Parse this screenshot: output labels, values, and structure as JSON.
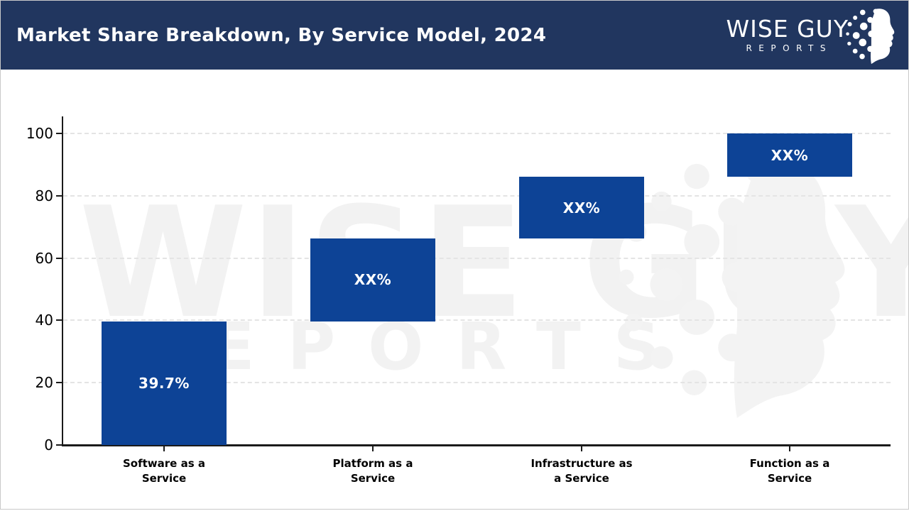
{
  "header": {
    "title": "Market Share Breakdown, By Service Model, 2024",
    "bg_color": "#21365f",
    "logo": {
      "wordmark": "WISE GUY",
      "subtext": "REPORTS"
    }
  },
  "watermark": {
    "wordmark": "WISE GUY",
    "subtext": "REPORTS"
  },
  "chart_data": {
    "type": "bar",
    "variant": "waterfall",
    "title": "Market Share Breakdown, By Service Model, 2024",
    "xlabel": "",
    "ylabel": "",
    "ylim": [
      0,
      100
    ],
    "yticks": [
      0,
      20,
      40,
      60,
      80,
      100
    ],
    "grid": "horizontal-dashed",
    "legend": "none",
    "bar_color": "#0d4396",
    "value_label_color": "#ffffff",
    "categories": [
      "Software as a Service",
      "Platform as a Service",
      "Infrastructure as a Service",
      "Function as a Service"
    ],
    "category_lines": [
      [
        "Software as a",
        "Service"
      ],
      [
        "Platform as a",
        "Service"
      ],
      [
        "Infrastructure as",
        "a Service"
      ],
      [
        "Function as a",
        "Service"
      ]
    ],
    "segments": [
      {
        "category": "Software as a Service",
        "start": 0,
        "end": 39.7,
        "label": "39.7%"
      },
      {
        "category": "Platform as a Service",
        "start": 39.7,
        "end": 66.3,
        "label": "XX%"
      },
      {
        "category": "Infrastructure as a Service",
        "start": 66.3,
        "end": 86.0,
        "label": "XX%"
      },
      {
        "category": "Function as a Service",
        "start": 86.0,
        "end": 100.0,
        "label": "XX%"
      }
    ]
  }
}
